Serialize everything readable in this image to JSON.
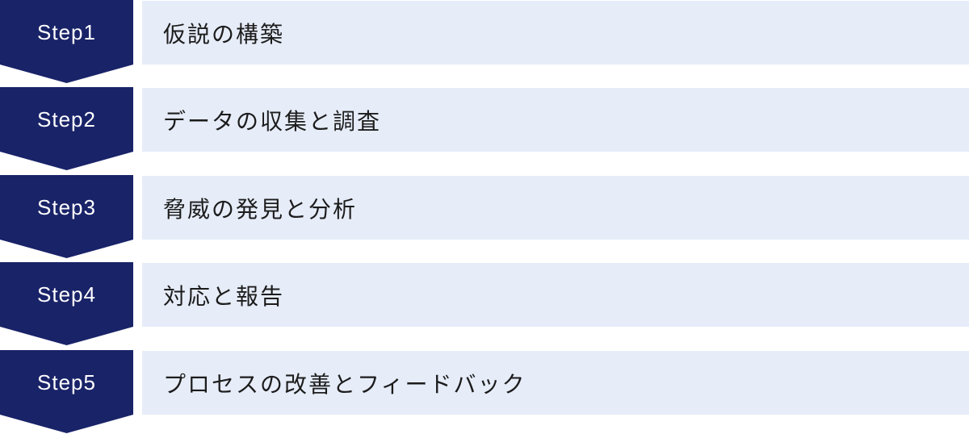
{
  "diagram": {
    "type": "process-flow",
    "steps": [
      {
        "label": "Step1",
        "text": "仮説の構築"
      },
      {
        "label": "Step2",
        "text": "データの収集と調査"
      },
      {
        "label": "Step3",
        "text": "脅威の発見と分析"
      },
      {
        "label": "Step4",
        "text": "対応と報告"
      },
      {
        "label": "Step5",
        "text": "プロセスの改善とフィードバック"
      }
    ],
    "colors": {
      "arrow_fill": "#192368",
      "bar_fill": "#e6ecf8",
      "arrow_text": "#ffffff",
      "bar_text": "#1c1c1c",
      "background": "#ffffff"
    }
  }
}
